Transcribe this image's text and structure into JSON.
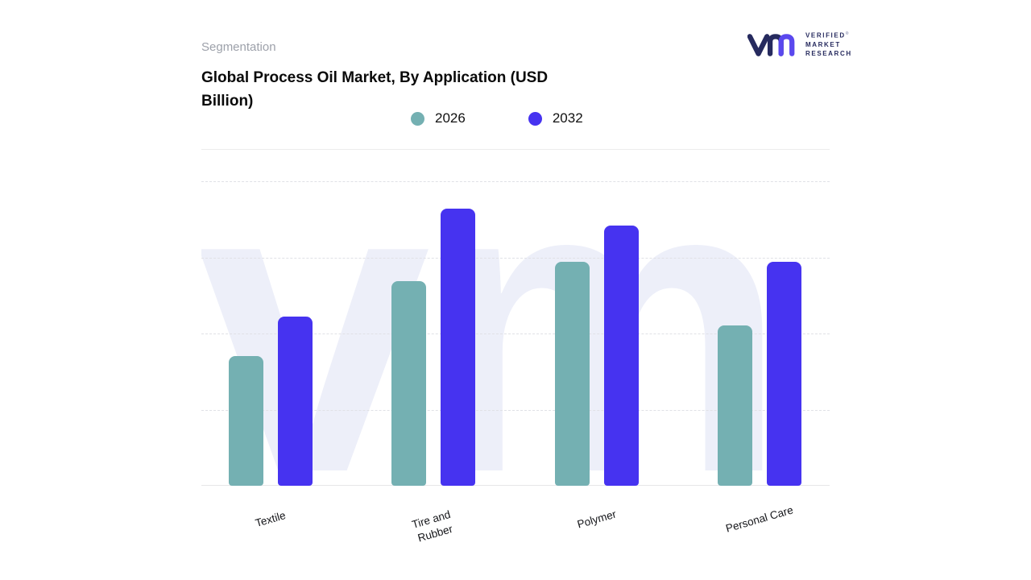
{
  "header": {
    "segmentation_label": "Segmentation",
    "title": "Global Process Oil Market, By Application (USD Billion)"
  },
  "logo": {
    "mark_icon": "vm-monogram-icon",
    "lines": [
      "VERIFIED",
      "MARKET",
      "RESEARCH"
    ],
    "registered_symbol": "®",
    "color_primary": "#262a5e",
    "color_accent": "#5a48ee"
  },
  "watermark": {
    "text": "vm",
    "color": "#edeff9"
  },
  "chart_data": {
    "type": "bar",
    "title": "Global Process Oil Market, By Application (USD Billion)",
    "categories": [
      "Textile",
      "Tire and Rubber",
      "Polymer",
      "Personal Care"
    ],
    "series": [
      {
        "name": "2026",
        "color": "#74b0b2",
        "values": [
          47,
          74,
          81,
          58
        ]
      },
      {
        "name": "2032",
        "color": "#4633f0",
        "values": [
          61,
          100,
          94,
          81
        ]
      }
    ],
    "ylim": [
      0,
      110
    ],
    "xlabel": "",
    "ylabel": "",
    "y_axis_labels_visible": false,
    "grid": "horizontal-dashed",
    "legend_position": "top-center"
  }
}
